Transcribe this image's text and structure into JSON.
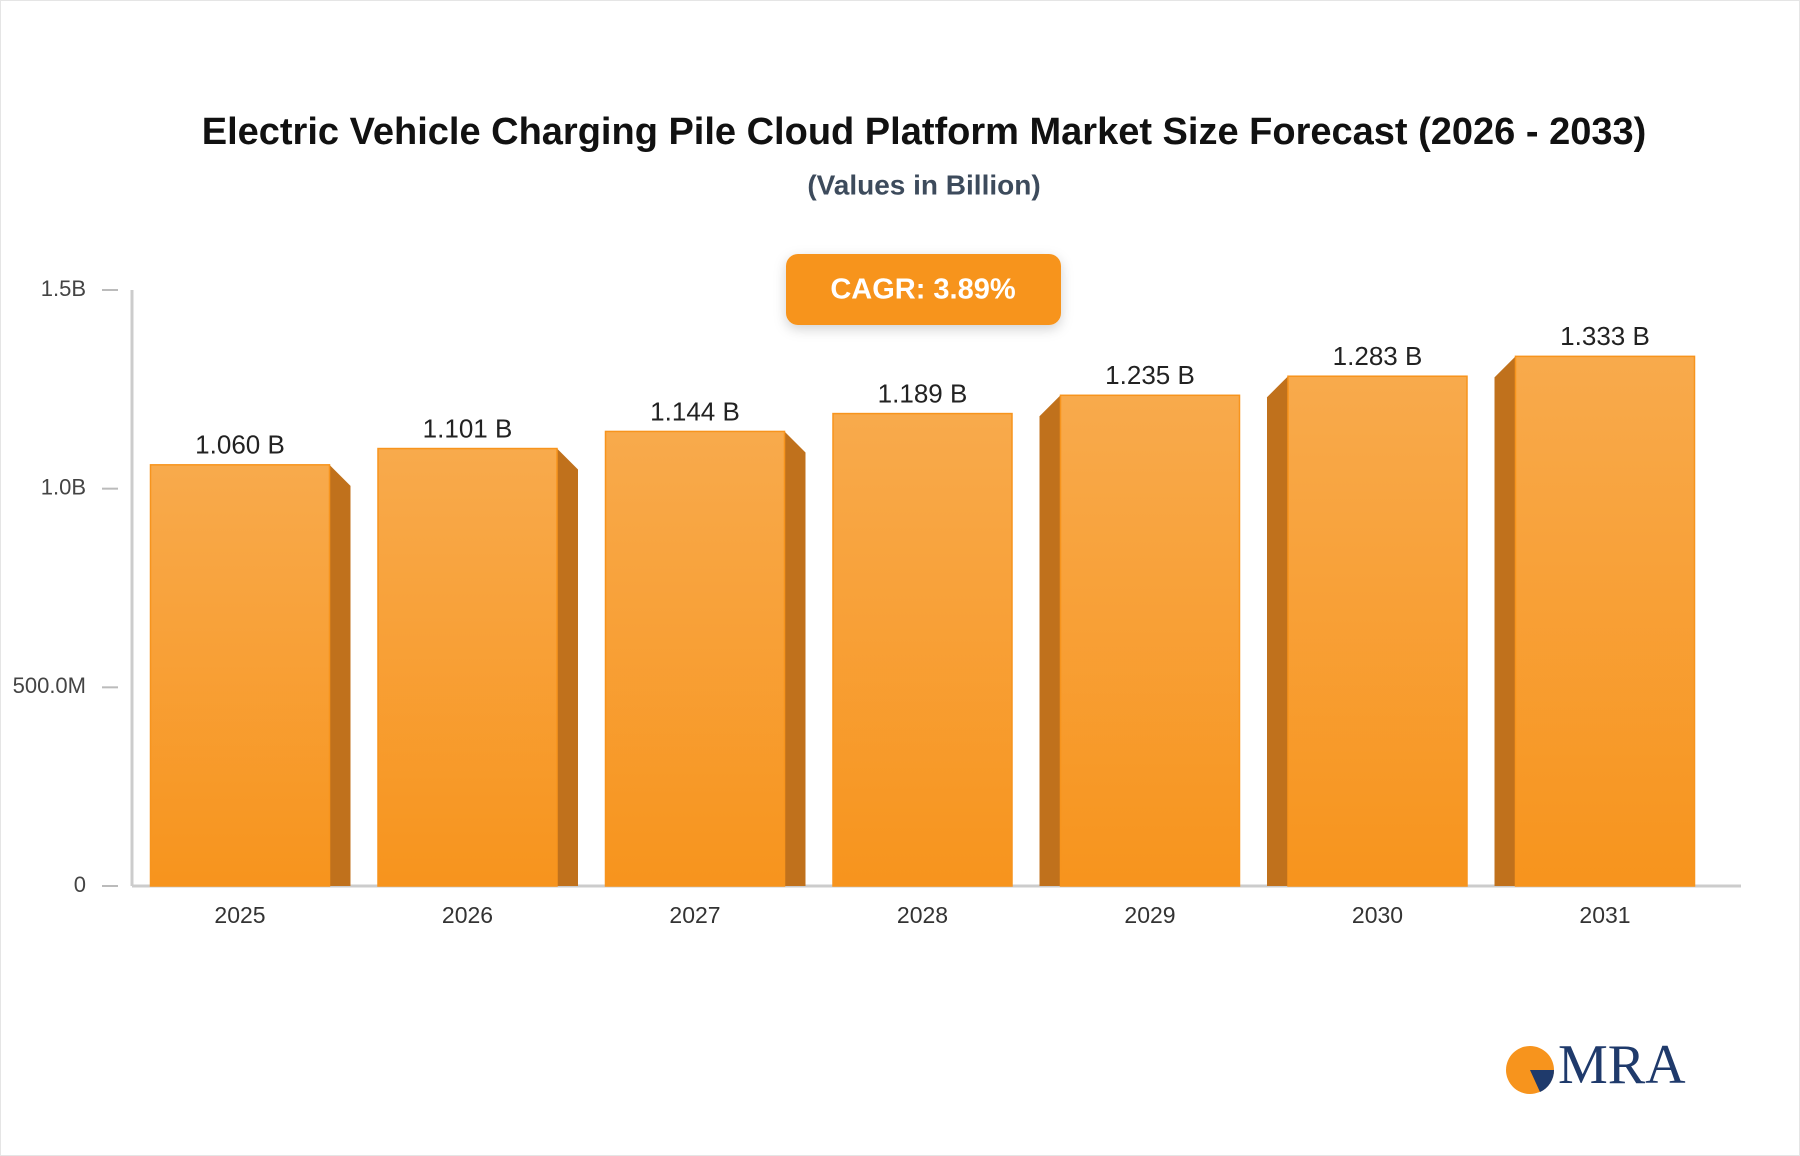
{
  "chart_data": {
    "type": "bar",
    "title": "Electric Vehicle Charging Pile Cloud Platform Market Size Forecast (2026 - 2033)",
    "subtitle": "(Values in Billion)",
    "annotation": "CAGR: 3.89%",
    "logo": "MRA",
    "categories": [
      "2025",
      "2026",
      "2027",
      "2028",
      "2029",
      "2030",
      "2031"
    ],
    "values": [
      1.06,
      1.101,
      1.144,
      1.189,
      1.235,
      1.283,
      1.333
    ],
    "value_labels": [
      "1.060 B",
      "1.101 B",
      "1.144 B",
      "1.189 B",
      "1.235 B",
      "1.283 B",
      "1.333 B"
    ],
    "color": "#f7941d",
    "ylim": [
      0,
      1.5
    ],
    "yticks": [
      0,
      {
        "value": 0.5,
        "label": "500.0M"
      },
      {
        "value": 1,
        "label": "1.0B"
      },
      {
        "value": 1.5,
        "label": "1.5B"
      }
    ]
  }
}
